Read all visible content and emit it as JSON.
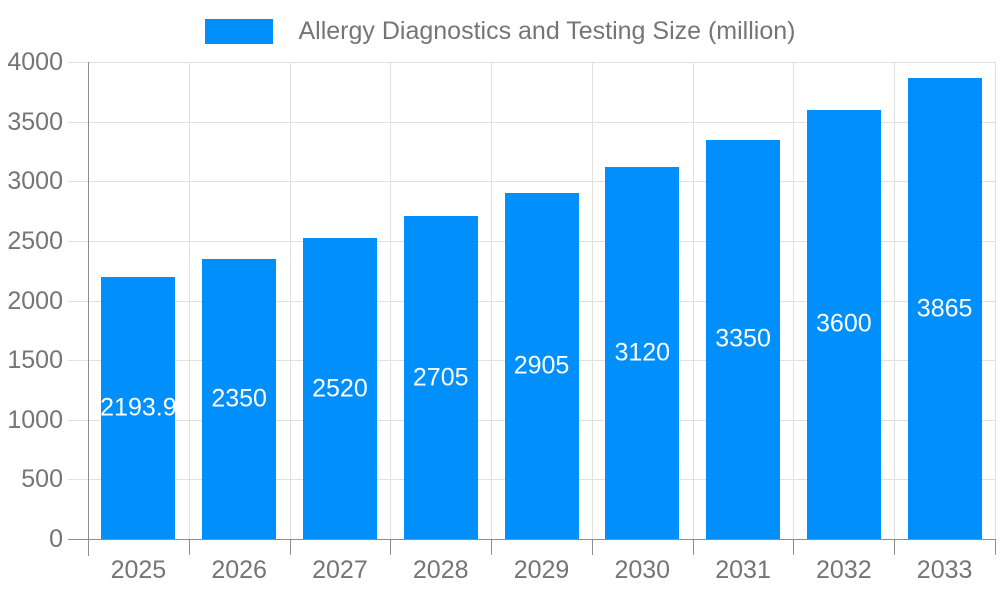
{
  "legend": {
    "label": "Allergy Diagnostics and Testing Size (million)"
  },
  "chart_data": {
    "type": "bar",
    "title": "Allergy Diagnostics and Testing Size (million)",
    "categories": [
      "2025",
      "2026",
      "2027",
      "2028",
      "2029",
      "2030",
      "2031",
      "2032",
      "2033"
    ],
    "series": [
      {
        "name": "Allergy Diagnostics and Testing Size (million)",
        "values": [
          2193.9,
          2350,
          2520,
          2705,
          2905,
          3120,
          3350,
          3600,
          3865
        ]
      }
    ],
    "value_labels": [
      "2193.9",
      "2350",
      "2520",
      "2705",
      "2905",
      "3120",
      "3350",
      "3600",
      "3865"
    ],
    "xlabel": "",
    "ylabel": "",
    "ylim": [
      0,
      4000
    ],
    "ytick_step": 500,
    "yticks": [
      0,
      500,
      1000,
      1500,
      2000,
      2500,
      3000,
      3500,
      4000
    ],
    "grid": true,
    "legend_position": "top"
  },
  "style": {
    "bar_color": "#008FFB",
    "value_label_color": "#ffffff",
    "text_color": "#757575",
    "grid_color": "#e0e0e0",
    "axis_color": "#8e8e8e"
  }
}
